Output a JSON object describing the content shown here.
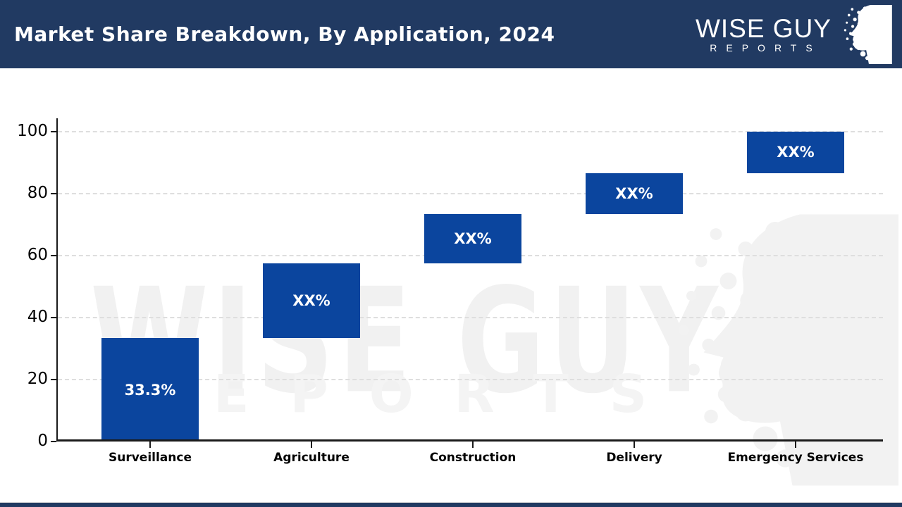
{
  "header": {
    "title": "Market Share Breakdown, By Application, 2024",
    "logo": {
      "line1": "WISE GUY",
      "line2": "REPORTS"
    },
    "bg_color": "#213a62",
    "text_color": "#ffffff"
  },
  "watermark": {
    "line1": "WISE GUY",
    "line2": "REPORTS"
  },
  "chart_data": {
    "type": "bar",
    "subtype": "waterfall",
    "title": "Market Share Breakdown, By Application, 2024",
    "categories": [
      "Surveillance",
      "Agriculture",
      "Construction",
      "Delivery",
      "Emergency Services"
    ],
    "segments": [
      {
        "category": "Surveillance",
        "start": 0,
        "end": 33.3,
        "label": "33.3%"
      },
      {
        "category": "Agriculture",
        "start": 33.3,
        "end": 57.5,
        "label": "XX%"
      },
      {
        "category": "Construction",
        "start": 57.5,
        "end": 73.5,
        "label": "XX%"
      },
      {
        "category": "Delivery",
        "start": 73.5,
        "end": 86.7,
        "label": "XX%"
      },
      {
        "category": "Emergency Services",
        "start": 86.7,
        "end": 100,
        "label": "XX%"
      }
    ],
    "ylim": [
      0,
      100
    ],
    "yticks": [
      0,
      20,
      40,
      60,
      80,
      100
    ],
    "xlabel": "",
    "ylabel": "",
    "grid": "horizontal-dashed",
    "legend": "none",
    "bar_color": "#0b459e",
    "bar_label_color": "#ffffff",
    "axis_color": "#1a1a1a"
  }
}
